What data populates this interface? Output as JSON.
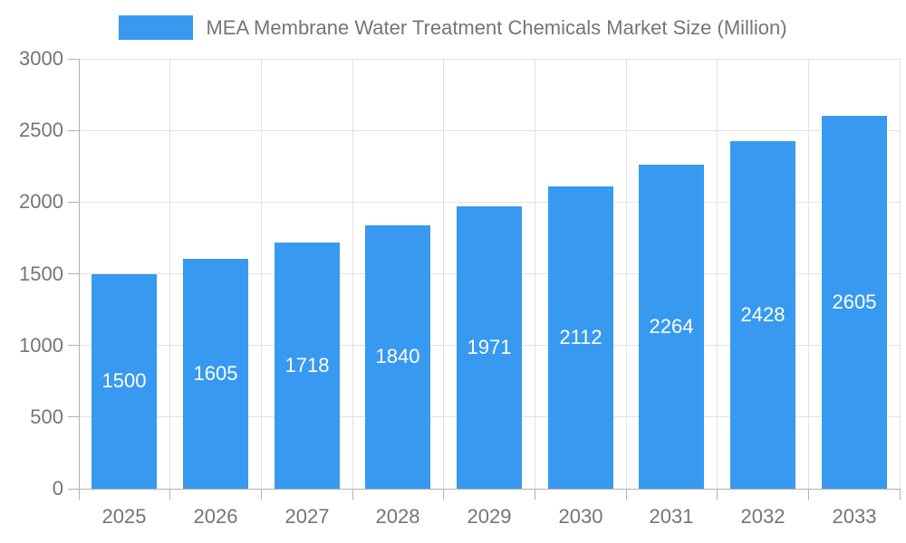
{
  "legend": {
    "label": "MEA Membrane Water Treatment Chemicals Market Size (Million)"
  },
  "chart_data": {
    "type": "bar",
    "title": "MEA Membrane Water Treatment Chemicals Market Size (Million)",
    "categories": [
      "2025",
      "2026",
      "2027",
      "2028",
      "2029",
      "2030",
      "2031",
      "2032",
      "2033"
    ],
    "values": [
      1500,
      1605,
      1718,
      1840,
      1971,
      2112,
      2264,
      2428,
      2605
    ],
    "series": [
      {
        "name": "MEA Membrane Water Treatment Chemicals Market Size (Million)",
        "values": [
          1500,
          1605,
          1718,
          1840,
          1971,
          2112,
          2264,
          2428,
          2605
        ]
      }
    ],
    "xlabel": "",
    "ylabel": "",
    "ylim": [
      0,
      3000
    ],
    "yticks": [
      0,
      500,
      1000,
      1500,
      2000,
      2500,
      3000
    ],
    "grid": true,
    "legend_position": "top",
    "data_labels": "inside-center"
  },
  "colors": {
    "bar": "#3899F0",
    "bar_label": "#ffffff",
    "axis_text": "#757575",
    "gridline": "#e2e2e2",
    "axis_line": "#b1b1b1",
    "background": "#ffffff"
  }
}
